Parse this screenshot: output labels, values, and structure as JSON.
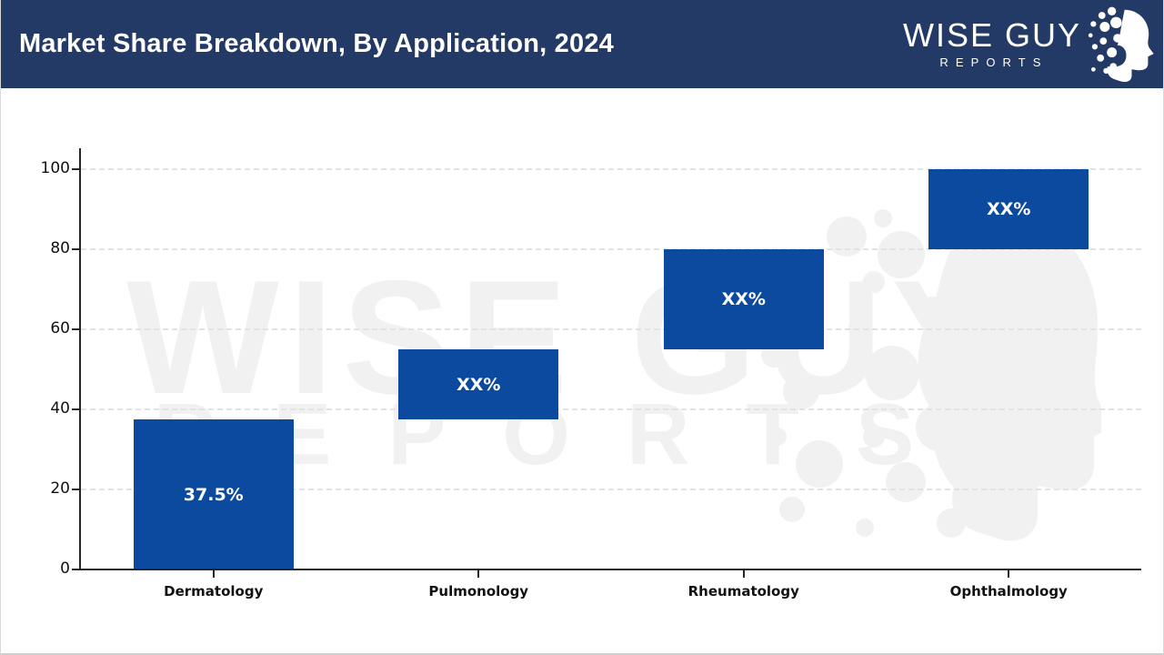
{
  "header": {
    "title": "Market Share Breakdown, By Application, 2024",
    "brand": {
      "line1": "WISE GUY",
      "line2": "REPORTS"
    }
  },
  "watermark": {
    "line1": "WISE GUY",
    "line2": "REPORTS"
  },
  "chart_data": {
    "type": "bar",
    "subtype": "waterfall",
    "title": "Market Share Breakdown, By Application, 2024",
    "categories": [
      "Dermatology",
      "Pulmonology",
      "Rheumatology",
      "Ophthalmology"
    ],
    "segments": [
      {
        "category": "Dermatology",
        "start": 0,
        "end": 37.5,
        "label": "37.5%"
      },
      {
        "category": "Pulmonology",
        "start": 37.5,
        "end": 55,
        "label": "XX%"
      },
      {
        "category": "Rheumatology",
        "start": 55,
        "end": 80,
        "label": "XX%"
      },
      {
        "category": "Ophthalmology",
        "start": 80,
        "end": 100,
        "label": "XX%"
      }
    ],
    "values_increment": [
      37.5,
      17.5,
      25,
      20
    ],
    "yticks": [
      0,
      20,
      40,
      60,
      80,
      100
    ],
    "ylim": [
      0,
      106
    ],
    "xlabel": "",
    "ylabel": "",
    "grid": "horizontal-dashed",
    "legend": "none",
    "bar_color": "#0b4a9e",
    "bar_label_color": "#ffffff",
    "axis_color": "#262626",
    "header_color": "#243a66",
    "watermark_color": "#f1f1f1"
  }
}
